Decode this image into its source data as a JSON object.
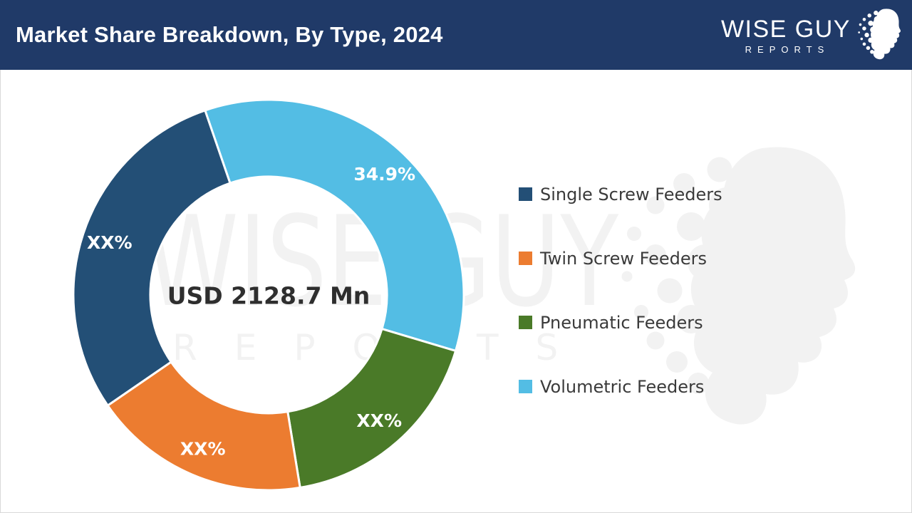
{
  "header": {
    "title": "Market Share Breakdown, By Type, 2024",
    "logo": {
      "line1": "WISE GUY",
      "line2": "REPORTS"
    }
  },
  "watermark": {
    "line1": "WISE GUY",
    "line2": "REPORTS"
  },
  "chart_data": {
    "type": "pie",
    "subtype": "donut",
    "title": "Market Share Breakdown, By Type, 2024",
    "center_label": "USD 2128.7 Mn",
    "unit": "percent of market share",
    "start_angle_deg": -19,
    "donut_hole_ratio": 0.61,
    "legend_position": "right",
    "segments": [
      {
        "name": "Volumetric Feeders",
        "value": 34.9,
        "display_label": "34.9%",
        "color": "#53bde4"
      },
      {
        "name": "Pneumatic Feeders",
        "value": 17.8,
        "display_label": "XX%",
        "color": "#4a7a28"
      },
      {
        "name": "Twin Screw Feeders",
        "value": 18.0,
        "display_label": "XX%",
        "color": "#ec7c30"
      },
      {
        "name": "Single Screw Feeders",
        "value": 29.3,
        "display_label": "XX%",
        "color": "#234f76"
      }
    ],
    "legend_order": [
      "Single Screw Feeders",
      "Twin Screw Feeders",
      "Pneumatic Feeders",
      "Volumetric Feeders"
    ]
  }
}
